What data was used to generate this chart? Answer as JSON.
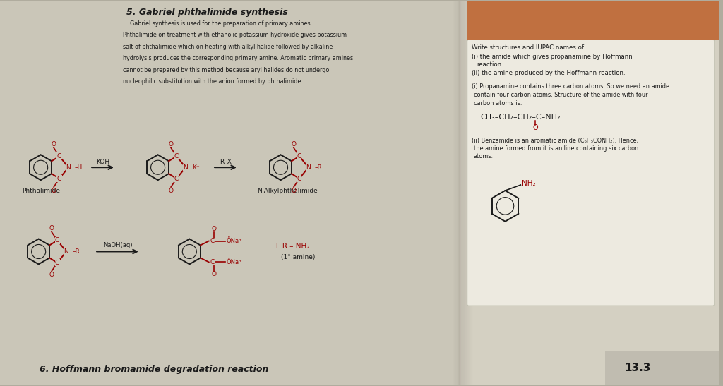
{
  "left_bg": "#ccc8bc",
  "right_bg": "#d8d4c8",
  "right_panel_bg": "#e8e5dc",
  "top_brown": "#b87040",
  "tc": "#1a1a1a",
  "rc": "#990000",
  "title": "5. Gabriel phthalimide synthesis",
  "body": [
    "    Gabriel synthesis is used for the preparation of primary amines.",
    "Phthalimide on treatment with ethanolic potassium hydroxide gives potassium",
    "salt of phthalimide which on heating with alkyl halide followed by alkaline",
    "hydrolysis produces the corresponding primary amine. Aromatic primary amines",
    "cannot be prepared by this method because aryl halides do not undergo",
    "nucleophilic substitution with the anion formed by phthalimide."
  ],
  "footer": "6. Hoffmann bromamide degradation reaction",
  "page_num": "13.3"
}
